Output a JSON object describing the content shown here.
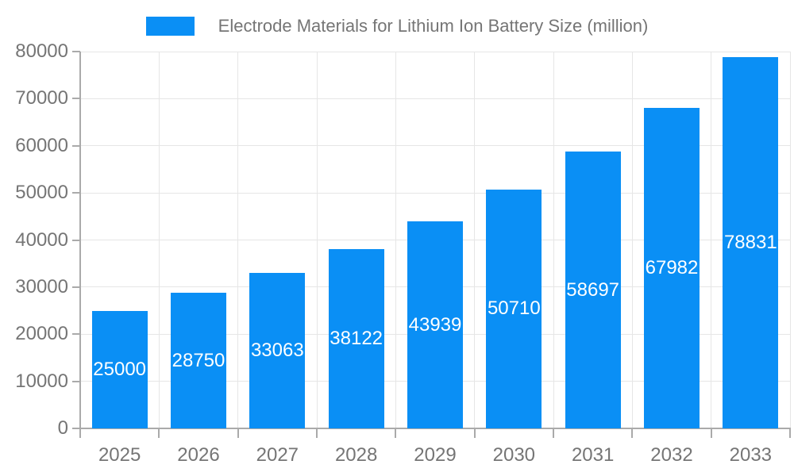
{
  "chart_data": {
    "type": "bar",
    "title": "Electrode Materials for Lithium Ion Battery Size (million)",
    "categories": [
      "2025",
      "2026",
      "2027",
      "2028",
      "2029",
      "2030",
      "2031",
      "2032",
      "2033"
    ],
    "values": [
      25000,
      28750,
      33063,
      38122,
      43939,
      50710,
      58697,
      67982,
      78831
    ],
    "xlabel": "",
    "ylabel": "",
    "ylim": [
      0,
      80000
    ],
    "yticks": [
      0,
      10000,
      20000,
      30000,
      40000,
      50000,
      60000,
      70000,
      80000
    ],
    "grid": true,
    "legend_position": "top-center",
    "value_label_position": "inside-center",
    "colors": {
      "bar": "#0a8ff5",
      "value_label": "#ffffff",
      "axis_text": "#757575",
      "title_text": "#757575",
      "gridline": "#e6e6e6",
      "axis_line": "#aaaaaa",
      "background": "#ffffff"
    }
  }
}
